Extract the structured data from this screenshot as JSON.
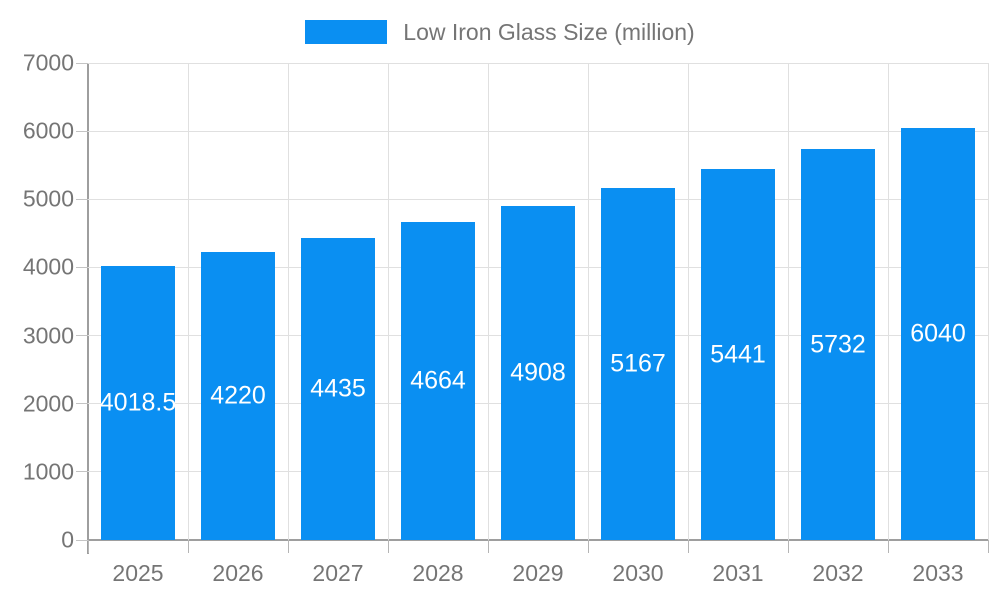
{
  "chart": {
    "legend": {
      "label": "Low Iron Glass Size (million)"
    },
    "colors": {
      "bar": "#0a8ff2",
      "axis_text": "#757575",
      "gridline": "#e0e0e0",
      "axis_line": "#9e9e9e",
      "value_label": "#ffffff"
    }
  },
  "chart_data": {
    "type": "bar",
    "title": "",
    "xlabel": "",
    "ylabel": "",
    "categories": [
      "2025",
      "2026",
      "2027",
      "2028",
      "2029",
      "2030",
      "2031",
      "2032",
      "2033"
    ],
    "series": [
      {
        "name": "Low Iron Glass Size (million)",
        "values": [
          4018.5,
          4220,
          4435,
          4664,
          4908,
          5167,
          5441,
          5732,
          6040
        ]
      }
    ],
    "value_labels_shown": [
      4018.5,
      4220,
      4435,
      4664,
      4908,
      5167,
      5441,
      5732,
      6040
    ],
    "ylim": [
      0,
      7000
    ],
    "ytick_step": 1000,
    "yticks": [
      0,
      1000,
      2000,
      3000,
      4000,
      5000,
      6000,
      7000
    ],
    "grid": true,
    "legend_position": "top-center",
    "value_label_position": "inside-center"
  }
}
